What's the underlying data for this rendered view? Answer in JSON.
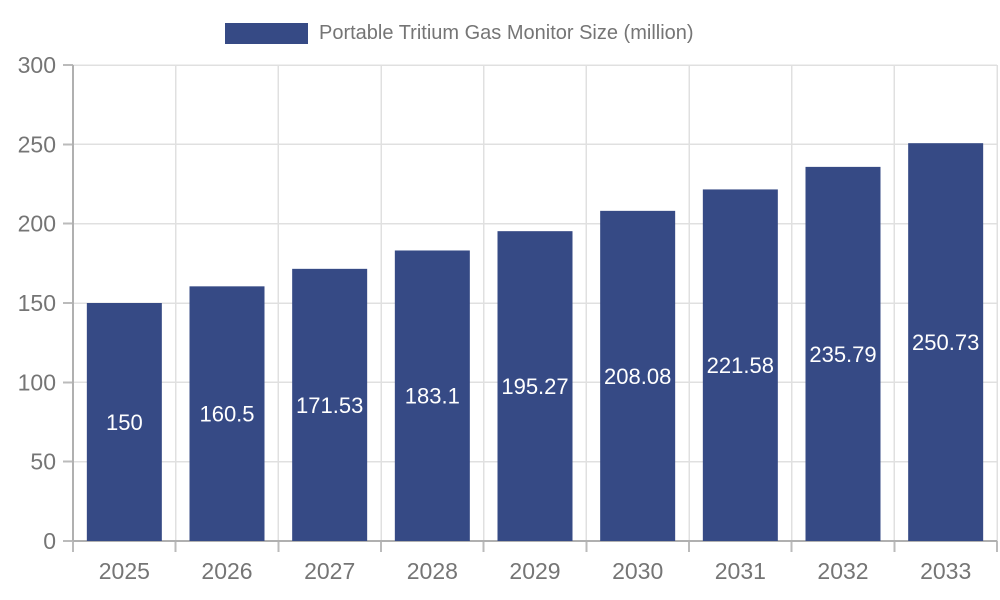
{
  "legend": {
    "label": "Portable Tritium Gas Monitor Size (million)",
    "swatch_color": "#364a85"
  },
  "chart_data": {
    "type": "bar",
    "title": "Portable Tritium Gas Monitor Size (million)",
    "categories": [
      "2025",
      "2026",
      "2027",
      "2028",
      "2029",
      "2030",
      "2031",
      "2032",
      "2033"
    ],
    "values": [
      150,
      160.5,
      171.53,
      183.1,
      195.27,
      208.08,
      221.58,
      235.79,
      250.73
    ],
    "value_labels": [
      "150",
      "160.5",
      "171.53",
      "183.1",
      "195.27",
      "208.08",
      "221.58",
      "235.79",
      "250.73"
    ],
    "xlabel": "",
    "ylabel": "",
    "ylim": [
      0,
      300
    ],
    "yticks": [
      0,
      50,
      100,
      150,
      200,
      250,
      300
    ],
    "grid": true,
    "legend_position": "top",
    "bar_color": "#364a85",
    "bar_label_color": "#ffffff",
    "grid_color": "#e0e0e0",
    "axis_color": "#b0b0b0",
    "tick_color": "#bbbbbb",
    "tick_label_color": "#757575"
  }
}
